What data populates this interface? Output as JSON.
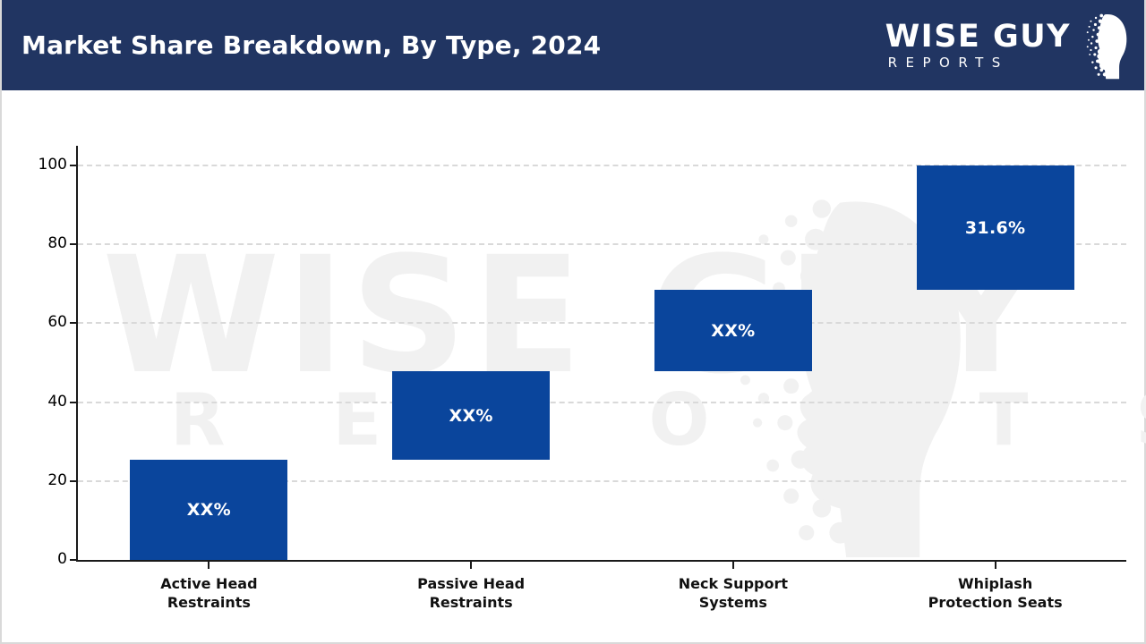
{
  "header": {
    "title": "Market Share Breakdown, By Type, 2024",
    "logo": {
      "line1": "WISE GUY",
      "line2": "REPORTS"
    }
  },
  "watermark": {
    "line1": "WISE GUY",
    "line2": "R E P O R T S"
  },
  "colors": {
    "header_bg": "#213562",
    "bar": "#0a459c",
    "grid": "#d9d9d9",
    "axis": "#1a1a1a",
    "watermark": "#f1f1f1",
    "title_text": "#ffffff",
    "bar_label_text": "#ffffff"
  },
  "chart_data": {
    "type": "bar",
    "subtype": "waterfall",
    "title": "Market Share Breakdown, By Type, 2024",
    "categories": [
      "Active Head Restraints",
      "Passive Head Restraints",
      "Neck Support Systems",
      "Whiplash Protection Seats"
    ],
    "category_lines": [
      [
        "Active Head",
        "Restraints"
      ],
      [
        "Passive Head",
        "Restraints"
      ],
      [
        "Neck Support",
        "Systems"
      ],
      [
        "Whiplash",
        "Protection Seats"
      ]
    ],
    "bars": [
      {
        "category": "Active Head Restraints",
        "start": 0,
        "end": 25.3,
        "value": 25.3,
        "label": "XX%"
      },
      {
        "category": "Passive Head Restraints",
        "start": 25.3,
        "end": 47.9,
        "value": 22.6,
        "label": "XX%"
      },
      {
        "category": "Neck Support Systems",
        "start": 47.9,
        "end": 68.4,
        "value": 20.5,
        "label": "XX%"
      },
      {
        "category": "Whiplash Protection Seats",
        "start": 68.4,
        "end": 100,
        "value": 31.6,
        "label": "31.6%"
      }
    ],
    "ylim": [
      0,
      100
    ],
    "yticks": [
      0,
      20,
      40,
      60,
      80,
      100
    ],
    "xlabel": "",
    "ylabel": "",
    "grid": "horizontal-dashed",
    "legend": "none"
  }
}
